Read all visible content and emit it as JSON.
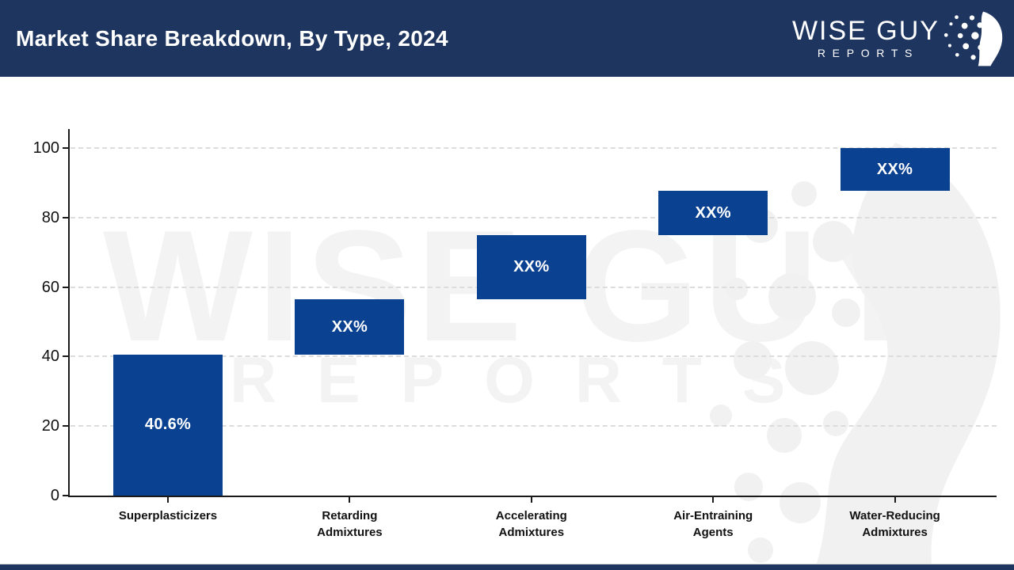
{
  "header": {
    "title": "Market Share Breakdown, By Type, 2024"
  },
  "logo": {
    "line1": "WISE GUY",
    "line2": "REPORTS"
  },
  "watermark": {
    "line1": "WISE GUY",
    "line2": "REPORTS"
  },
  "colors": {
    "header_bg": "#1e355f",
    "footer_bg": "#1e355f",
    "bar": "#0b4191",
    "bar_label": "#ffffff",
    "grid": "#dcdcdc",
    "watermark": "#f3f3f3"
  },
  "chart_data": {
    "type": "bar",
    "variant": "waterfall",
    "title": "Market Share Breakdown, By Type, 2024",
    "categories": [
      "Superplasticizers",
      "Retarding\nAdmixtures",
      "Accelerating\nAdmixtures",
      "Air-Entraining\nAgents",
      "Water-Reducing\nAdmixtures"
    ],
    "segments": [
      {
        "category": "Superplasticizers",
        "start": 0,
        "end": 40.6,
        "label": "40.6%"
      },
      {
        "category": "Retarding Admixtures",
        "start": 40.6,
        "end": 56.4,
        "label": "XX%"
      },
      {
        "category": "Accelerating Admixtures",
        "start": 56.4,
        "end": 75.0,
        "label": "XX%"
      },
      {
        "category": "Air-Entraining Agents",
        "start": 75.0,
        "end": 87.6,
        "label": "XX%"
      },
      {
        "category": "Water-Reducing Admixtures",
        "start": 87.6,
        "end": 100.0,
        "label": "XX%"
      }
    ],
    "yticks": [
      0,
      20,
      40,
      60,
      80,
      100
    ],
    "ylim": [
      0,
      105
    ],
    "xlabel": "",
    "ylabel": "",
    "grid": {
      "horizontal": true,
      "style": "dashed"
    },
    "legend": null,
    "bar_color": "#0b4191",
    "bar_label_color": "#ffffff"
  }
}
